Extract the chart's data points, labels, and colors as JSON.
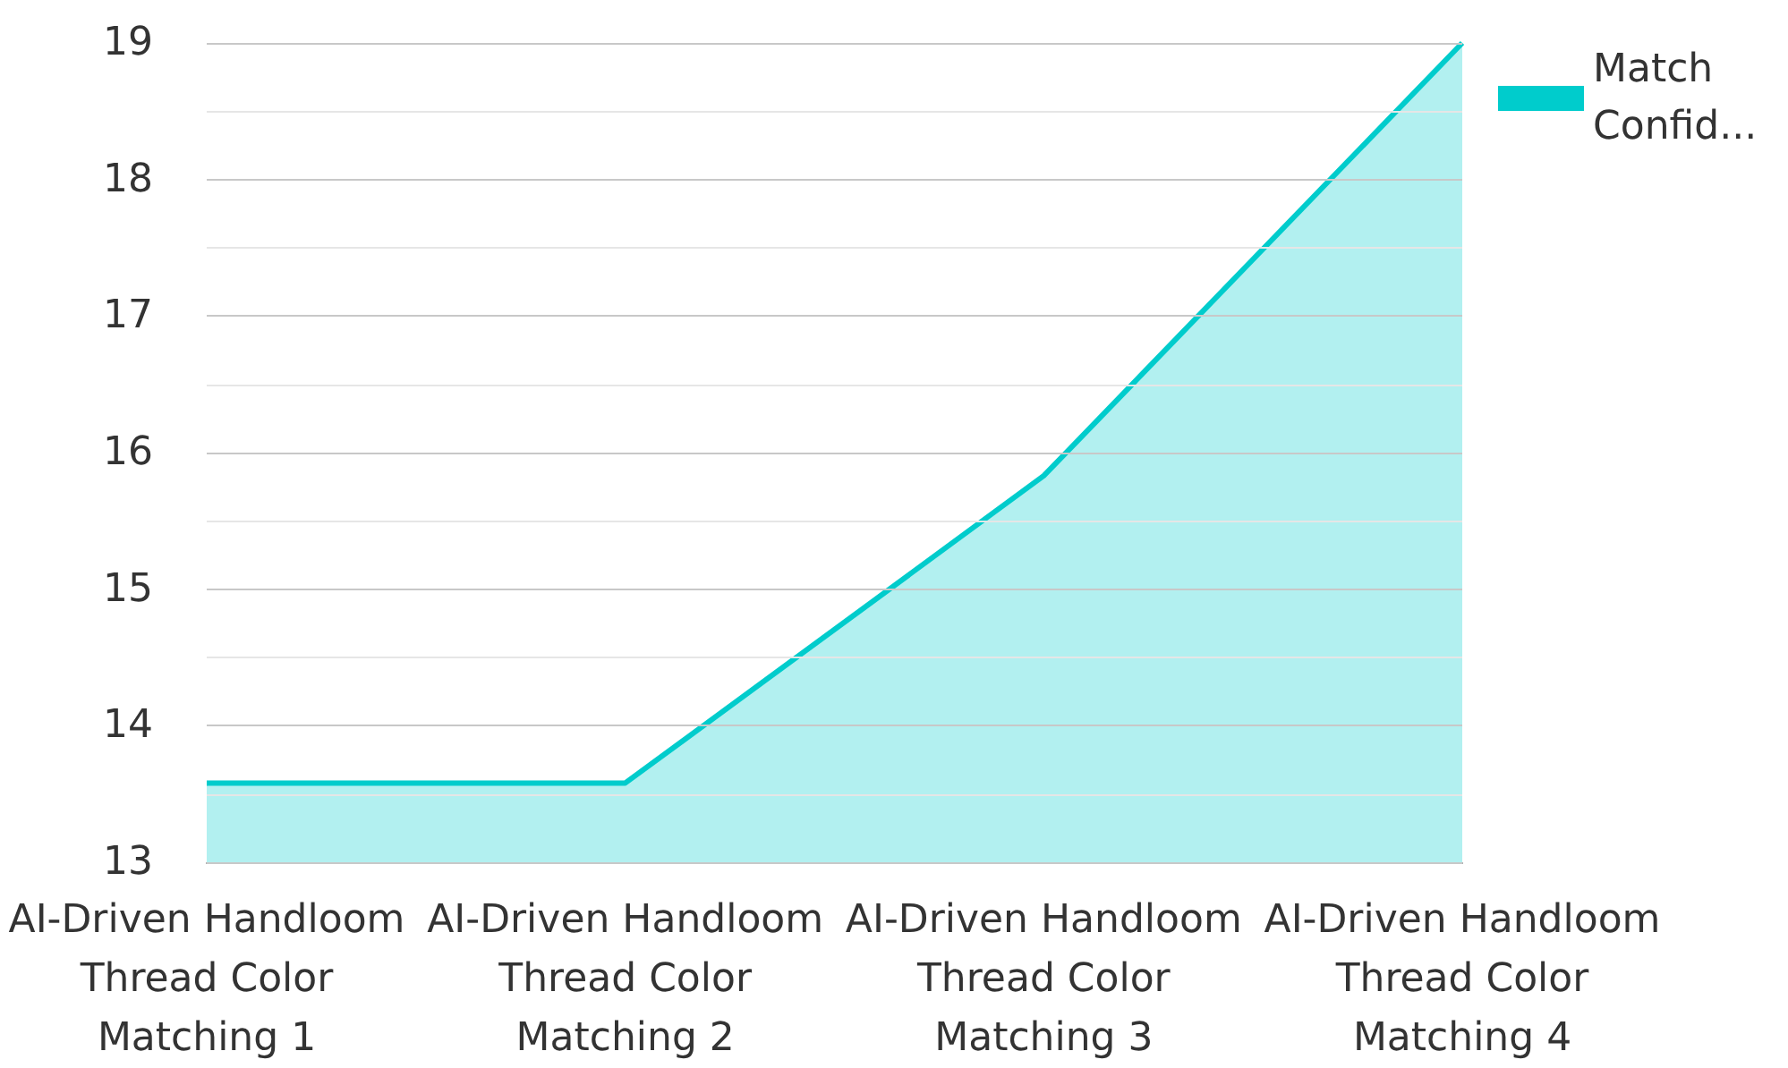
{
  "chart_data": {
    "type": "area",
    "categories": [
      "AI-Driven Handloom Thread Color Matching 1",
      "AI-Driven Handloom Thread Color Matching 2",
      "AI-Driven Handloom Thread Color Matching 3",
      "AI-Driven Handloom Thread Color Matching 4"
    ],
    "series": [
      {
        "name": "Match Confid...",
        "color": "#00cccc",
        "values": [
          13.58,
          13.58,
          15.83,
          19
        ]
      }
    ],
    "ylim": [
      13,
      19
    ],
    "yticks": [
      13,
      {
        "value": 13.5,
        "label": null
      },
      14,
      {
        "value": 14.5,
        "label": null
      },
      15,
      {
        "value": 15.5,
        "label": null
      },
      16,
      {
        "value": 16.5,
        "label": null
      },
      17,
      {
        "value": 17.5,
        "label": null
      },
      18,
      {
        "value": 18.5,
        "label": null
      },
      19
    ],
    "grid": "y",
    "legend": "top right",
    "marker": "none"
  }
}
